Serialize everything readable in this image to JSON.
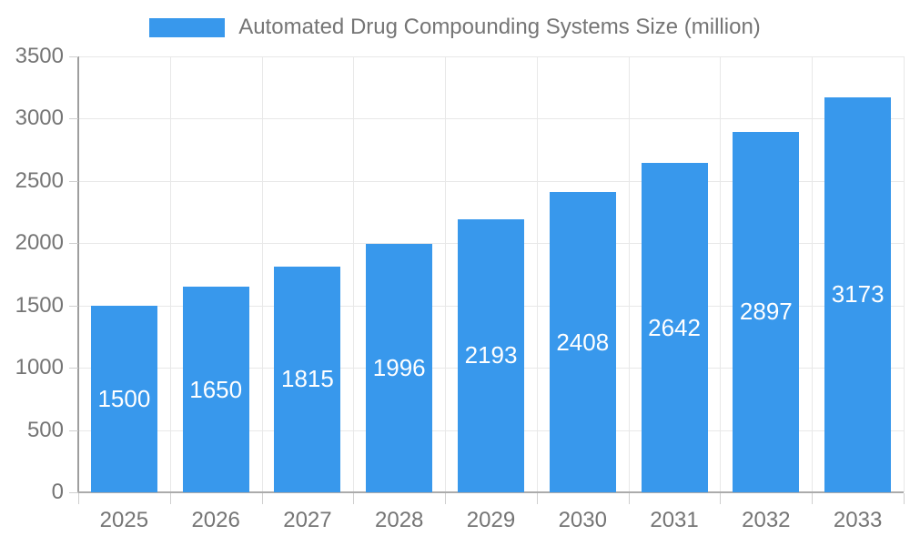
{
  "legend": {
    "items": [
      {
        "label": "Automated Drug Compounding Systems Size (million)",
        "swatch_color": "#3898ec"
      }
    ]
  },
  "chart_data": {
    "type": "bar",
    "title": "Automated Drug Compounding Systems Size (million)",
    "categories": [
      "2025",
      "2026",
      "2027",
      "2028",
      "2029",
      "2030",
      "2031",
      "2032",
      "2033"
    ],
    "values": [
      1500,
      1650,
      1815,
      1996,
      2193,
      2408,
      2642,
      2897,
      3173
    ],
    "bar_labels": [
      "1500",
      "1650",
      "1815",
      "1996",
      "2193",
      "2408",
      "2642",
      "2897",
      "3173"
    ],
    "xlabel": "",
    "ylabel": "",
    "ylim": [
      0,
      3500
    ],
    "yticks": [
      0,
      500,
      1000,
      1500,
      2000,
      2500,
      3000,
      3500
    ],
    "ytick_labels": [
      "0",
      "500",
      "1000",
      "1500",
      "2000",
      "2500",
      "3000",
      "3500"
    ],
    "grid": true,
    "legend_position": "top",
    "colors": {
      "bar": "#3898ec",
      "bar_label": "#ffffff",
      "grid": "#e8e8e8",
      "axis_line": "#9e9e9e",
      "tick_mark": "#cfcfcf",
      "tick_label": "#757575",
      "legend_text": "#757575"
    }
  }
}
